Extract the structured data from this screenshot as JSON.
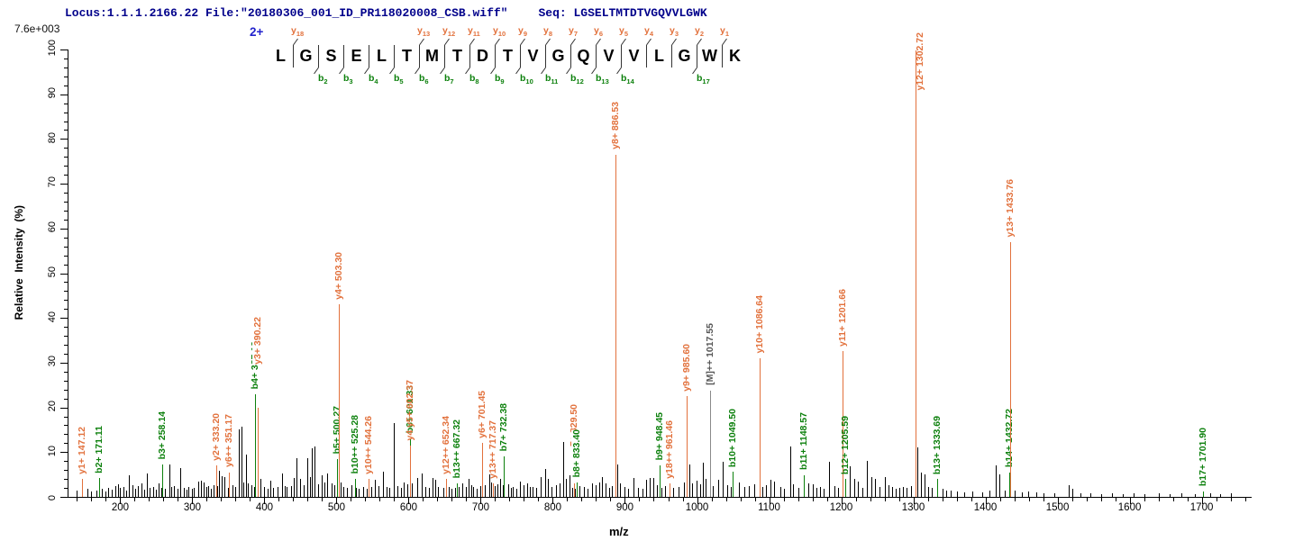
{
  "header": {
    "locus_file": "Locus:1.1.1.2166.22 File:\"20180306_001_ID_PR118020008_CSB.wiff\"",
    "seq": "Seq: LGSELTMTDTVGQVVLGWK"
  },
  "chart_data": {
    "type": "bar",
    "subtype": "ms2-peptide-fragmentation-spectrum",
    "title": "",
    "xlabel": "m/z",
    "ylabel": "Relative  Intensity  (%)",
    "scale_label": "7.6e+003",
    "xlim": [
      127,
      1768
    ],
    "ylim": [
      0,
      100
    ],
    "x_major_ticks": [
      200,
      300,
      400,
      500,
      600,
      700,
      800,
      900,
      1000,
      1100,
      1200,
      1300,
      1400,
      1500,
      1600,
      1700
    ],
    "x_minor_step": 20,
    "y_major_ticks": [
      0,
      10,
      20,
      30,
      40,
      50,
      60,
      70,
      80,
      90,
      100
    ],
    "y_minor_step": 2,
    "grid": false,
    "legend": "none",
    "colors": {
      "y_ion": "#E2713C",
      "b_ion": "#0C800C",
      "precursor_line": "#8a8a8a",
      "precursor_text": "#555555",
      "peak_black": "#000000",
      "header_blue": "#00008B",
      "charge_blue": "#2222CC"
    },
    "peptide": {
      "charge": "2+",
      "sequence": "LGSELTMTDTVGQVVLGWK",
      "residues": [
        "L",
        "G",
        "S",
        "E",
        "L",
        "T",
        "M",
        "T",
        "D",
        "T",
        "V",
        "G",
        "Q",
        "V",
        "V",
        "L",
        "G",
        "W",
        "K"
      ],
      "boundaries": [
        {
          "after": 1,
          "y": 18
        },
        {
          "after": 2,
          "b": 2
        },
        {
          "after": 3,
          "b": 3
        },
        {
          "after": 4,
          "b": 4
        },
        {
          "after": 5,
          "b": 5
        },
        {
          "after": 6,
          "y": 13,
          "b": 6
        },
        {
          "after": 7,
          "y": 12,
          "b": 7
        },
        {
          "after": 8,
          "y": 11,
          "b": 8
        },
        {
          "after": 9,
          "y": 10,
          "b": 9
        },
        {
          "after": 10,
          "y": 9,
          "b": 10
        },
        {
          "after": 11,
          "y": 8,
          "b": 11
        },
        {
          "after": 12,
          "y": 7,
          "b": 12
        },
        {
          "after": 13,
          "y": 6,
          "b": 13
        },
        {
          "after": 14,
          "y": 5,
          "b": 14
        },
        {
          "after": 15,
          "y": 4
        },
        {
          "after": 16,
          "y": 3
        },
        {
          "after": 17,
          "y": 2,
          "b": 17
        },
        {
          "after": 18,
          "y": 1
        }
      ]
    },
    "labeled_peaks": [
      {
        "mz": 147.12,
        "intensity": 4.0,
        "ion": "y",
        "label": "y1+ 147.12"
      },
      {
        "mz": 171.11,
        "intensity": 4.2,
        "ion": "b",
        "label": "b2+ 171.11"
      },
      {
        "mz": 258.14,
        "intensity": 7.3,
        "ion": "b",
        "label": "b3+ 258.14"
      },
      {
        "mz": 333.2,
        "intensity": 7.0,
        "ion": "y",
        "label": "y2+ 333.20"
      },
      {
        "mz": 351.17,
        "intensity": 5.5,
        "ion": "y",
        "label": "y6++ 351.17"
      },
      {
        "mz": 387.19,
        "intensity": 23.0,
        "ion": "b",
        "label": "b4+ 387.19"
      },
      {
        "mz": 390.22,
        "intensity": 20.0,
        "ion": "y",
        "label": "y3+ 390.22",
        "raise": 9,
        "cover": true
      },
      {
        "mz": 500.27,
        "intensity": 8.5,
        "ion": "b",
        "label": "b5+ 500.27"
      },
      {
        "mz": 503.3,
        "intensity": 43.0,
        "ion": "y",
        "label": "y4+ 503.30"
      },
      {
        "mz": 525.28,
        "intensity": 4.0,
        "ion": "b",
        "label": "b10++ 525.28"
      },
      {
        "mz": 544.26,
        "intensity": 4.0,
        "ion": "y",
        "label": "y10++ 544.26"
      },
      {
        "mz": 601.33,
        "intensity": 13.0,
        "ion": "b",
        "label": "b6+ 601.33"
      },
      {
        "mz": 602.37,
        "intensity": 11.5,
        "ion": "y",
        "label": "y4 y5+ 602.37"
      },
      {
        "mz": 652.34,
        "intensity": 4.0,
        "ion": "y",
        "label": "y12++ 652.34"
      },
      {
        "mz": 667.32,
        "intensity": 3.0,
        "ion": "b",
        "label": "b13++ 667.32"
      },
      {
        "mz": 701.45,
        "intensity": 12.0,
        "ion": "y",
        "label": "y6+ 701.45"
      },
      {
        "mz": 717.37,
        "intensity": 3.0,
        "ion": "y",
        "label": "y13++ 717.37"
      },
      {
        "mz": 732.38,
        "intensity": 9.0,
        "ion": "b",
        "label": "b7+ 732.38"
      },
      {
        "mz": 829.5,
        "intensity": 3.0,
        "ion": "y",
        "label": "y7+ 829.50",
        "raise": 6.5
      },
      {
        "mz": 833.4,
        "intensity": 3.2,
        "ion": "b",
        "label": "b8+ 833.40",
        "cover": true
      },
      {
        "mz": 886.53,
        "intensity": 76.5,
        "ion": "y",
        "label": "y8+ 886.53"
      },
      {
        "mz": 948.45,
        "intensity": 7.0,
        "ion": "b",
        "label": "b9+ 948.45"
      },
      {
        "mz": 961.46,
        "intensity": 3.0,
        "ion": "y",
        "label": "y18++ 961.46"
      },
      {
        "mz": 985.6,
        "intensity": 22.5,
        "ion": "y",
        "label": "y9+ 985.60"
      },
      {
        "mz": 1017.55,
        "intensity": 23.8,
        "ion": "M",
        "label": "[M]++ 1017.55"
      },
      {
        "mz": 1049.5,
        "intensity": 5.6,
        "ion": "b",
        "label": "b10+ 1049.50"
      },
      {
        "mz": 1086.64,
        "intensity": 31.0,
        "ion": "y",
        "label": "y10+ 1086.64"
      },
      {
        "mz": 1148.57,
        "intensity": 4.9,
        "ion": "b",
        "label": "b11+ 1148.57"
      },
      {
        "mz": 1201.66,
        "intensity": 32.5,
        "ion": "y",
        "label": "y11+ 1201.66"
      },
      {
        "mz": 1205.59,
        "intensity": 4.0,
        "ion": "b",
        "label": "b12+ 1205.59"
      },
      {
        "mz": 1302.72,
        "intensity": 100.3,
        "ion": "y",
        "label": "y12+ 1302.72",
        "raise": -10,
        "dx": 5
      },
      {
        "mz": 1333.69,
        "intensity": 4.0,
        "ion": "b",
        "label": "b13+ 1333.69"
      },
      {
        "mz": 1432.72,
        "intensity": 5.5,
        "ion": "b",
        "label": "b14+ 1432.72"
      },
      {
        "mz": 1433.76,
        "intensity": 57.0,
        "ion": "y",
        "label": "y13+ 1433.76"
      },
      {
        "mz": 1701.9,
        "intensity": 1.2,
        "ion": "b",
        "label": "b17+ 1701.90"
      }
    ],
    "unlabeled_peaks": [
      [
        139,
        1.5
      ],
      [
        155,
        1.8
      ],
      [
        160,
        1.2
      ],
      [
        167,
        1.4
      ],
      [
        174,
        1.8
      ],
      [
        179,
        1.3
      ],
      [
        183,
        2.0
      ],
      [
        188,
        1.6
      ],
      [
        193,
        2.5
      ],
      [
        197,
        2.8
      ],
      [
        200,
        2.0
      ],
      [
        204,
        2.2
      ],
      [
        208,
        1.5
      ],
      [
        212,
        4.8
      ],
      [
        217,
        2.6
      ],
      [
        221,
        1.8
      ],
      [
        224,
        2.4
      ],
      [
        229,
        3.0
      ],
      [
        233,
        1.6
      ],
      [
        237,
        5.2
      ],
      [
        241,
        2.0
      ],
      [
        246,
        2.2
      ],
      [
        249,
        1.6
      ],
      [
        253,
        3.0
      ],
      [
        257,
        2.0
      ],
      [
        262,
        1.8
      ],
      [
        268,
        7.3
      ],
      [
        271,
        2.2
      ],
      [
        274,
        2.4
      ],
      [
        279,
        1.8
      ],
      [
        283,
        6.5
      ],
      [
        288,
        2.0
      ],
      [
        292,
        1.6
      ],
      [
        295,
        2.2
      ],
      [
        299,
        1.8
      ],
      [
        302,
        2.0
      ],
      [
        308,
        3.4
      ],
      [
        312,
        3.6
      ],
      [
        316,
        3.2
      ],
      [
        319,
        2.2
      ],
      [
        322,
        2.4
      ],
      [
        326,
        1.8
      ],
      [
        329,
        2.6
      ],
      [
        334,
        2.4
      ],
      [
        337,
        5.8
      ],
      [
        341,
        4.6
      ],
      [
        345,
        4.4
      ],
      [
        349,
        2.0
      ],
      [
        356,
        2.6
      ],
      [
        360,
        2.2
      ],
      [
        364,
        15.0
      ],
      [
        368,
        15.7
      ],
      [
        371,
        3.2
      ],
      [
        374,
        9.5
      ],
      [
        377,
        3.0
      ],
      [
        382,
        2.6
      ],
      [
        386,
        2.2
      ],
      [
        395,
        4.0
      ],
      [
        400,
        2.2
      ],
      [
        404,
        1.8
      ],
      [
        408,
        3.6
      ],
      [
        412,
        2.0
      ],
      [
        418,
        2.2
      ],
      [
        424,
        5.2
      ],
      [
        428,
        2.4
      ],
      [
        431,
        2.2
      ],
      [
        437,
        2.4
      ],
      [
        441,
        4.2
      ],
      [
        445,
        8.6
      ],
      [
        449,
        4.0
      ],
      [
        454,
        2.6
      ],
      [
        460,
        8.6
      ],
      [
        463,
        4.4
      ],
      [
        466,
        10.9
      ],
      [
        470,
        11.3
      ],
      [
        475,
        2.8
      ],
      [
        479,
        4.8
      ],
      [
        483,
        3.2
      ],
      [
        487,
        5.2
      ],
      [
        493,
        3.0
      ],
      [
        497,
        2.6
      ],
      [
        506,
        3.2
      ],
      [
        510,
        2.2
      ],
      [
        515,
        2.0
      ],
      [
        521,
        2.6
      ],
      [
        527,
        2.0
      ],
      [
        531,
        1.8
      ],
      [
        537,
        2.2
      ],
      [
        542,
        1.8
      ],
      [
        548,
        2.2
      ],
      [
        553,
        3.8
      ],
      [
        558,
        2.4
      ],
      [
        564,
        5.6
      ],
      [
        569,
        2.2
      ],
      [
        573,
        2.0
      ],
      [
        580,
        16.5
      ],
      [
        585,
        2.4
      ],
      [
        589,
        2.0
      ],
      [
        593,
        3.2
      ],
      [
        598,
        2.8
      ],
      [
        605,
        3.0
      ],
      [
        612,
        4.2
      ],
      [
        618,
        5.2
      ],
      [
        623,
        2.2
      ],
      [
        628,
        2.0
      ],
      [
        633,
        4.2
      ],
      [
        637,
        3.8
      ],
      [
        641,
        2.2
      ],
      [
        648,
        2.0
      ],
      [
        656,
        2.2
      ],
      [
        660,
        1.8
      ],
      [
        665,
        2.0
      ],
      [
        669,
        2.2
      ],
      [
        674,
        3.0
      ],
      [
        679,
        2.2
      ],
      [
        683,
        4.0
      ],
      [
        687,
        2.6
      ],
      [
        690,
        2.2
      ],
      [
        695,
        1.8
      ],
      [
        699,
        2.4
      ],
      [
        706,
        2.6
      ],
      [
        712,
        5.0
      ],
      [
        715,
        3.2
      ],
      [
        719,
        2.4
      ],
      [
        723,
        2.8
      ],
      [
        727,
        4.0
      ],
      [
        731,
        2.6
      ],
      [
        738,
        2.8
      ],
      [
        742,
        2.0
      ],
      [
        745,
        2.2
      ],
      [
        750,
        1.8
      ],
      [
        754,
        3.5
      ],
      [
        759,
        2.6
      ],
      [
        764,
        3.0
      ],
      [
        768,
        2.2
      ],
      [
        772,
        2.2
      ],
      [
        777,
        2.0
      ],
      [
        783,
        4.5
      ],
      [
        789,
        6.2
      ],
      [
        793,
        4.0
      ],
      [
        798,
        2.2
      ],
      [
        805,
        2.6
      ],
      [
        809,
        3.0
      ],
      [
        814,
        12.3
      ],
      [
        818,
        4.0
      ],
      [
        823,
        4.9
      ],
      [
        827,
        2.0
      ],
      [
        831,
        1.8
      ],
      [
        837,
        2.4
      ],
      [
        843,
        2.2
      ],
      [
        848,
        1.8
      ],
      [
        854,
        3.0
      ],
      [
        860,
        2.6
      ],
      [
        864,
        3.2
      ],
      [
        868,
        4.4
      ],
      [
        873,
        3.0
      ],
      [
        878,
        2.0
      ],
      [
        882,
        2.4
      ],
      [
        890,
        7.3
      ],
      [
        893,
        3.0
      ],
      [
        900,
        2.2
      ],
      [
        905,
        1.8
      ],
      [
        912,
        4.2
      ],
      [
        918,
        2.0
      ],
      [
        924,
        1.8
      ],
      [
        930,
        3.9
      ],
      [
        935,
        4.2
      ],
      [
        939,
        4.2
      ],
      [
        944,
        2.6
      ],
      [
        951,
        2.0
      ],
      [
        955,
        2.4
      ],
      [
        967,
        2.0
      ],
      [
        974,
        2.2
      ],
      [
        982,
        3.2
      ],
      [
        989,
        7.3
      ],
      [
        993,
        3.0
      ],
      [
        999,
        3.6
      ],
      [
        1004,
        2.8
      ],
      [
        1008,
        7.6
      ],
      [
        1012,
        4.0
      ],
      [
        1022,
        2.4
      ],
      [
        1029,
        3.9
      ],
      [
        1035,
        7.9
      ],
      [
        1042,
        2.6
      ],
      [
        1047,
        2.2
      ],
      [
        1058,
        3.2
      ],
      [
        1065,
        2.2
      ],
      [
        1072,
        2.4
      ],
      [
        1079,
        2.8
      ],
      [
        1090,
        2.2
      ],
      [
        1095,
        2.6
      ],
      [
        1102,
        3.9
      ],
      [
        1107,
        3.4
      ],
      [
        1115,
        2.2
      ],
      [
        1121,
        1.8
      ],
      [
        1129,
        11.3
      ],
      [
        1133,
        2.8
      ],
      [
        1140,
        2.0
      ],
      [
        1154,
        3.0
      ],
      [
        1160,
        2.8
      ],
      [
        1166,
        2.0
      ],
      [
        1170,
        2.2
      ],
      [
        1176,
        1.8
      ],
      [
        1183,
        7.9
      ],
      [
        1190,
        2.4
      ],
      [
        1196,
        2.0
      ],
      [
        1212,
        6.9
      ],
      [
        1218,
        4.0
      ],
      [
        1223,
        3.5
      ],
      [
        1229,
        2.0
      ],
      [
        1235,
        8.0
      ],
      [
        1242,
        4.5
      ],
      [
        1247,
        4.0
      ],
      [
        1253,
        2.2
      ],
      [
        1260,
        4.5
      ],
      [
        1265,
        2.6
      ],
      [
        1270,
        2.2
      ],
      [
        1276,
        1.8
      ],
      [
        1281,
        2.0
      ],
      [
        1285,
        2.2
      ],
      [
        1290,
        2.0
      ],
      [
        1297,
        2.4
      ],
      [
        1305,
        11.0
      ],
      [
        1310,
        5.5
      ],
      [
        1316,
        5.0
      ],
      [
        1321,
        2.2
      ],
      [
        1326,
        2.0
      ],
      [
        1340,
        1.8
      ],
      [
        1345,
        1.5
      ],
      [
        1352,
        1.5
      ],
      [
        1360,
        1.2
      ],
      [
        1370,
        1.0
      ],
      [
        1382,
        1.2
      ],
      [
        1395,
        1.0
      ],
      [
        1405,
        1.5
      ],
      [
        1414,
        7.0
      ],
      [
        1419,
        5.0
      ],
      [
        1427,
        1.5
      ],
      [
        1440,
        1.5
      ],
      [
        1450,
        1.0
      ],
      [
        1459,
        1.2
      ],
      [
        1470,
        1.0
      ],
      [
        1480,
        0.8
      ],
      [
        1495,
        0.8
      ],
      [
        1516,
        2.6
      ],
      [
        1521,
        1.8
      ],
      [
        1532,
        0.8
      ],
      [
        1545,
        0.8
      ],
      [
        1560,
        0.6
      ],
      [
        1575,
        0.8
      ],
      [
        1590,
        0.6
      ],
      [
        1605,
        0.8
      ],
      [
        1620,
        0.6
      ],
      [
        1640,
        0.8
      ],
      [
        1655,
        0.6
      ],
      [
        1672,
        0.8
      ],
      [
        1690,
        0.6
      ],
      [
        1712,
        0.8
      ],
      [
        1725,
        0.6
      ],
      [
        1740,
        0.8
      ]
    ]
  }
}
